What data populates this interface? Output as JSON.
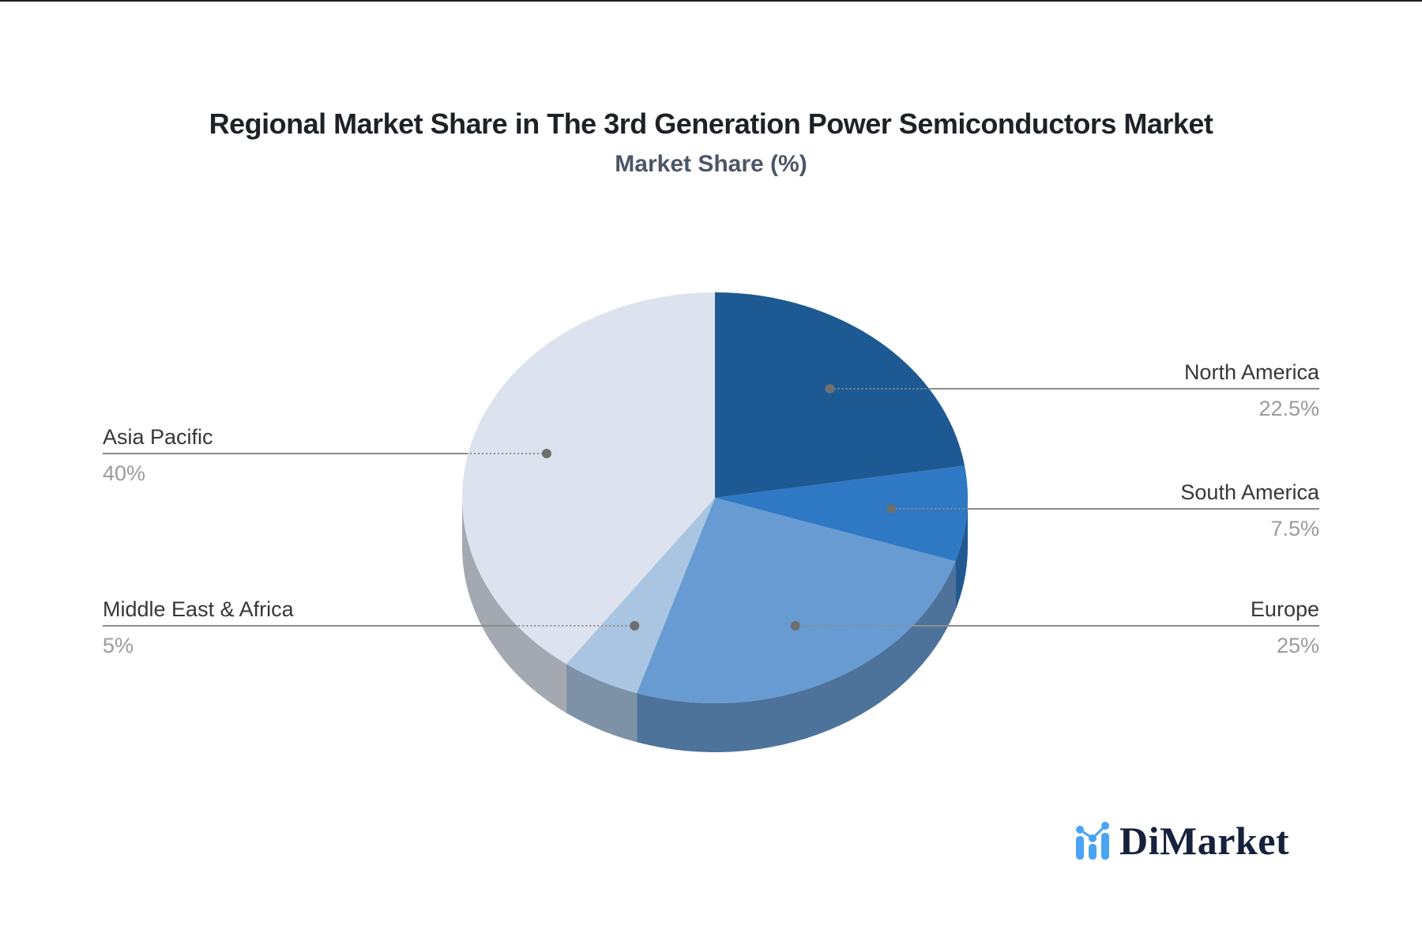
{
  "chart_data": {
    "type": "pie",
    "title": "Regional Market Share in The 3rd Generation Power Semiconductors Market",
    "subtitle": "Market Share (%)",
    "unit": "%",
    "effect": "3d-depth",
    "start_angle_deg": 0,
    "direction": "clockwise",
    "legend_position": "callout-labels-left-right",
    "slices": [
      {
        "label": "North America",
        "value": 22.5,
        "display": "22.5%",
        "color": "#1d5a94"
      },
      {
        "label": "South America",
        "value": 7.5,
        "display": "7.5%",
        "color": "#2e78c4"
      },
      {
        "label": "Europe",
        "value": 25,
        "display": "25%",
        "color": "#689bd1"
      },
      {
        "label": "Middle East & Africa",
        "value": 5,
        "display": "5%",
        "color": "#a9c5e1"
      },
      {
        "label": "Asia Pacific",
        "value": 40,
        "display": "40%",
        "color": "#dde3ee"
      }
    ]
  },
  "logo": {
    "text": "DiMarket",
    "icon": "bar-chart-logo-icon",
    "icon_color": "#4aa4f4",
    "text_color": "#16213d"
  },
  "style_colors": {
    "label_text": "#373737",
    "value_text": "#9b9b9b",
    "leader_line": "#8c8c8c",
    "leader_dot": "#6f6f6f",
    "title_text": "#1e2227",
    "subtitle_text": "#4c5766"
  }
}
